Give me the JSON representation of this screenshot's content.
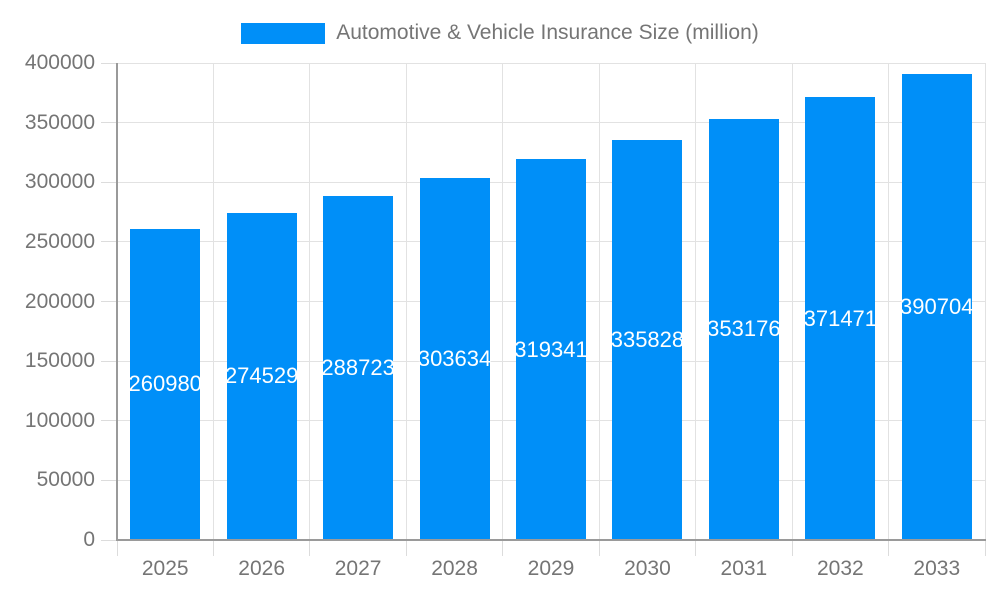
{
  "chart_data": {
    "type": "bar",
    "title": "Automotive & Vehicle Insurance Size (million)",
    "legend_position": "top",
    "grid": true,
    "categories": [
      "2025",
      "2026",
      "2027",
      "2028",
      "2029",
      "2030",
      "2031",
      "2032",
      "2033"
    ],
    "series": [
      {
        "name": "Automotive & Vehicle Insurance Size (million)",
        "values": [
          260980,
          274529,
          288723,
          303634,
          319341,
          335828,
          353176,
          371471,
          390704
        ]
      }
    ],
    "xlabel": "",
    "ylabel": "",
    "ylim": [
      0,
      400000
    ],
    "ytick_step": 50000,
    "ytick_labels": [
      "0",
      "50000",
      "100000",
      "150000",
      "200000",
      "250000",
      "300000",
      "350000",
      "400000"
    ],
    "bar_value_labels": [
      "260980",
      "274529",
      "288723",
      "303634",
      "319341",
      "335828",
      "353176",
      "371471",
      "390704"
    ],
    "colors": {
      "bar": "#008FF8",
      "bar_label": "#FFFFFF",
      "grid": "#E2E2E2",
      "tick": "#DCDCDC",
      "axis": "#9A9A9A",
      "text": "#757575",
      "background": "#FFFFFF"
    }
  }
}
